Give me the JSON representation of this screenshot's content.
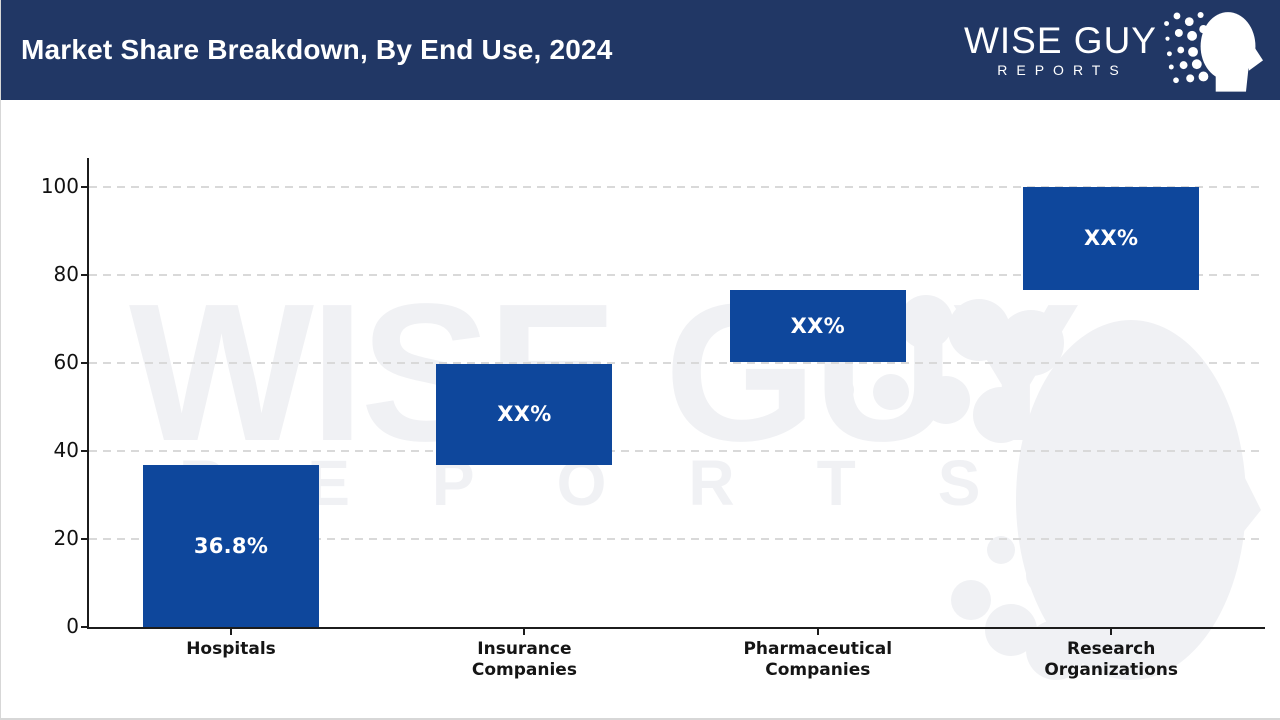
{
  "header": {
    "title": "Market Share Breakdown, By End Use, 2024",
    "logo": {
      "line1": "WISE GUY",
      "line2": "REPORTS"
    }
  },
  "watermark": {
    "line1": "WISE GUY",
    "line2": "REPORTS"
  },
  "colors": {
    "header_bg": "#213765",
    "bar": "#0e479c",
    "bar_label_text": "#ffffff",
    "grid": "#d9d9d9",
    "axis": "#1c1c1c",
    "watermark": "#f0f1f4"
  },
  "chart_data": {
    "type": "bar",
    "variant": "waterfall-floating-bars",
    "title": "Market Share Breakdown, By End Use, 2024",
    "categories": [
      "Hospitals",
      "Insurance Companies",
      "Pharmaceutical Companies",
      "Research Organizations"
    ],
    "series": [
      {
        "category": "Hospitals",
        "label": "36.8%",
        "start": 0,
        "end": 36.8
      },
      {
        "category": "Insurance Companies",
        "label": "XX%",
        "start": 36.8,
        "end": 59.8
      },
      {
        "category": "Pharmaceutical Companies",
        "label": "XX%",
        "start": 60.2,
        "end": 76.6
      },
      {
        "category": "Research Organizations",
        "label": "XX%",
        "start": 76.6,
        "end": 100
      }
    ],
    "ylim": [
      0,
      106
    ],
    "yticks": [
      0,
      20,
      40,
      60,
      80,
      100
    ],
    "grid": "horizontal-dashed",
    "legend": "none",
    "xlabel": "",
    "ylabel": ""
  }
}
